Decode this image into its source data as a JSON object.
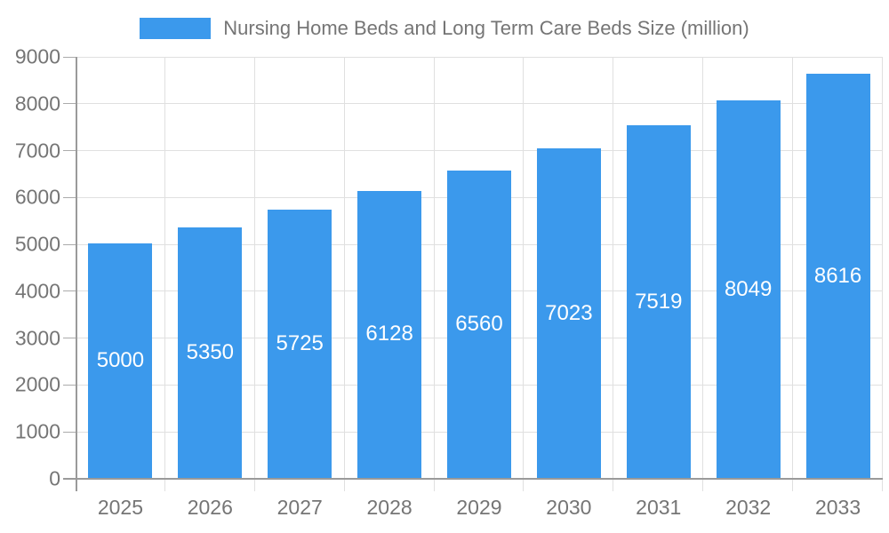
{
  "legend": {
    "label": "Nursing Home Beds and Long Term Care Beds Size (million)"
  },
  "chart_data": {
    "type": "bar",
    "title": "Nursing Home Beds and Long Term Care Beds Size (million)",
    "categories": [
      "2025",
      "2026",
      "2027",
      "2028",
      "2029",
      "2030",
      "2031",
      "2032",
      "2033"
    ],
    "values": [
      5000,
      5350,
      5725,
      6128,
      6560,
      7023,
      7519,
      8049,
      8616
    ],
    "xlabel": "",
    "ylabel": "",
    "ylim": [
      0,
      9000
    ],
    "ytick_step": 1000,
    "grid": true,
    "legend_position": "top",
    "colors": {
      "bar": "#3b99ec",
      "value_label": "#ffffff",
      "tick_text": "#757575",
      "legend_text": "#757575",
      "gridline": "#e0e0e0",
      "axis_line": "#9a9a9a",
      "minor_tick": "#ababab",
      "background": "#ffffff"
    }
  }
}
